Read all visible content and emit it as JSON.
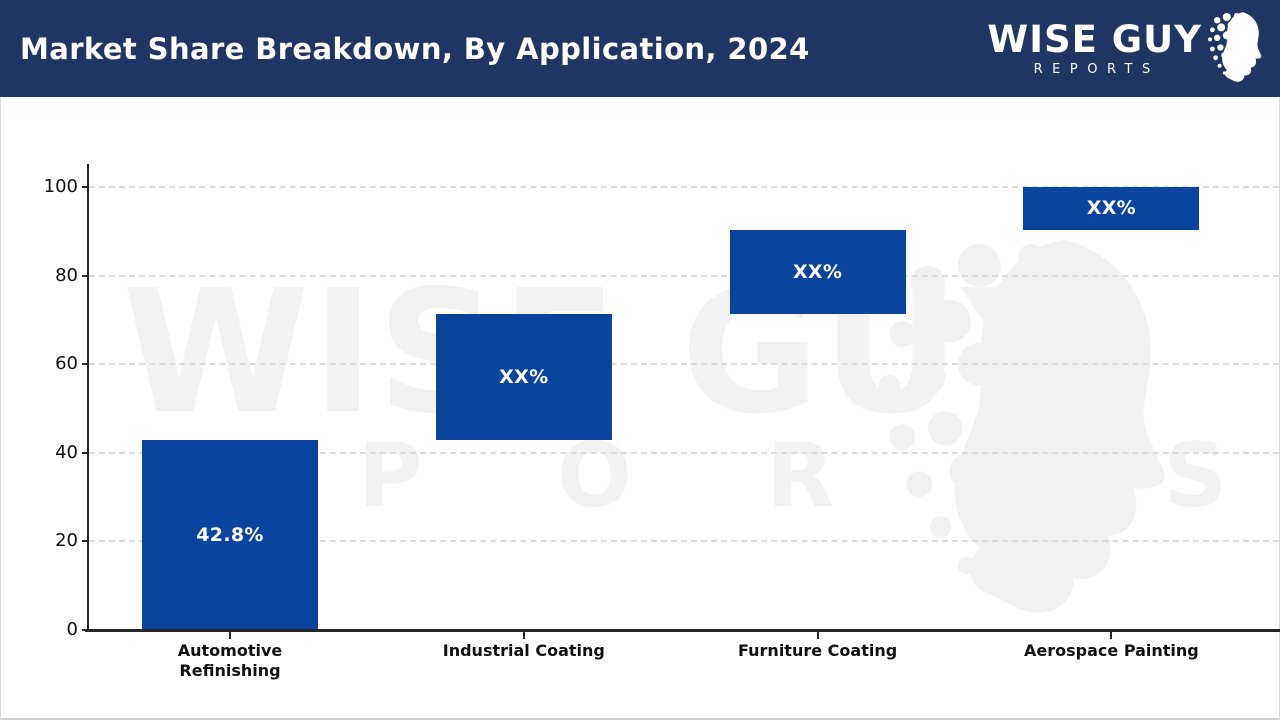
{
  "header": {
    "title": "Market Share Breakdown, By Application, 2024",
    "brand": {
      "line1": "WISE GUY",
      "line2": "REPORTS"
    }
  },
  "watermark": {
    "line1": "WISE GUY",
    "line2": "P O R T S"
  },
  "chart_data": {
    "type": "bar",
    "subtype": "floating-waterfall",
    "title": "Market Share Breakdown, By Application, 2024",
    "categories": [
      "Automotive Refinishing",
      "Industrial Coating",
      "Furniture Coating",
      "Aerospace Painting"
    ],
    "bars": [
      {
        "category": "Automotive Refinishing",
        "start": 0,
        "end": 42.8,
        "label": "42.8%"
      },
      {
        "category": "Industrial Coating",
        "start": 42.8,
        "end": 71.4,
        "label": "XX%"
      },
      {
        "category": "Furniture Coating",
        "start": 71.4,
        "end": 90.4,
        "label": "XX%"
      },
      {
        "category": "Aerospace Painting",
        "start": 90.4,
        "end": 100,
        "label": "XX%"
      }
    ],
    "ylim": [
      0,
      100
    ],
    "yticks": [
      0,
      20,
      40,
      60,
      80,
      100
    ],
    "xlabel": "",
    "ylabel": "",
    "grid": "horizontal-dashed",
    "legend": "none",
    "bar_color": "#0b449c",
    "bar_label_color": "#ffffff"
  }
}
